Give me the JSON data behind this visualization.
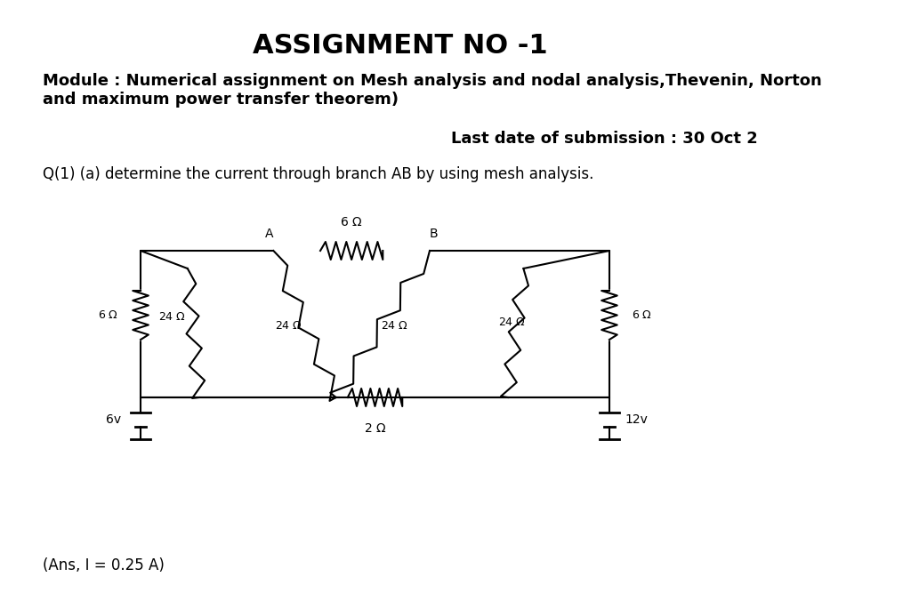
{
  "title": "ASSIGNMENT NO -1",
  "module_text": "Module : Numerical assignment on Mesh analysis and nodal analysis,Thevenin, Norton\nand maximum power transfer theorem)",
  "submission_text": "Last date of submission : 30 Oct 2",
  "question_text": "Q(1) (a) determine the current through branch AB by using mesh analysis.",
  "answer_text": "(Ans, I = 0.25 A)",
  "bg_color": "#ffffff",
  "line_color": "#000000",
  "title_fontsize": 22,
  "module_fontsize": 13,
  "question_fontsize": 12,
  "answer_fontsize": 12
}
